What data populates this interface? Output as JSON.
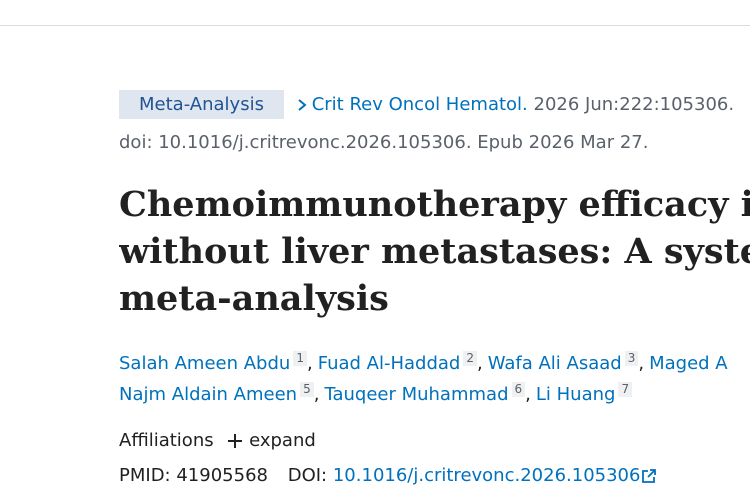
{
  "publication_type": "Meta-Analysis",
  "journal": "Crit Rev Oncol Hematol.",
  "citation": "2026 Jun:222:105306.",
  "doi_line": "doi: 10.1016/j.critrevonc.2026.105306. Epub 2026 Mar 27.",
  "title_lines": [
    "Chemoimmunotherapy efficacy in p",
    "without liver metastases: A systema",
    "meta-analysis"
  ],
  "separator": ",",
  "author_lines": [
    [
      {
        "name": "Salah Ameen Abdu",
        "affiliation": "1"
      },
      {
        "name": "Fuad Al-Haddad",
        "affiliation": "2"
      },
      {
        "name": "Wafa Ali Asaad",
        "affiliation": "3"
      },
      {
        "name": "Maged A",
        "affiliation": null
      }
    ],
    [
      {
        "name": "Najm Aldain Ameen",
        "affiliation": "5"
      },
      {
        "name": "Tauqeer Muhammad",
        "affiliation": "6"
      },
      {
        "name": "Li Huang",
        "affiliation": "7"
      }
    ]
  ],
  "affiliations_label": "Affiliations",
  "expand_label": "expand",
  "pmid_label": "PMID:",
  "pmid": "41905568",
  "doi_label": "DOI:",
  "doi": "10.1016/j.critrevonc.2026.105306"
}
